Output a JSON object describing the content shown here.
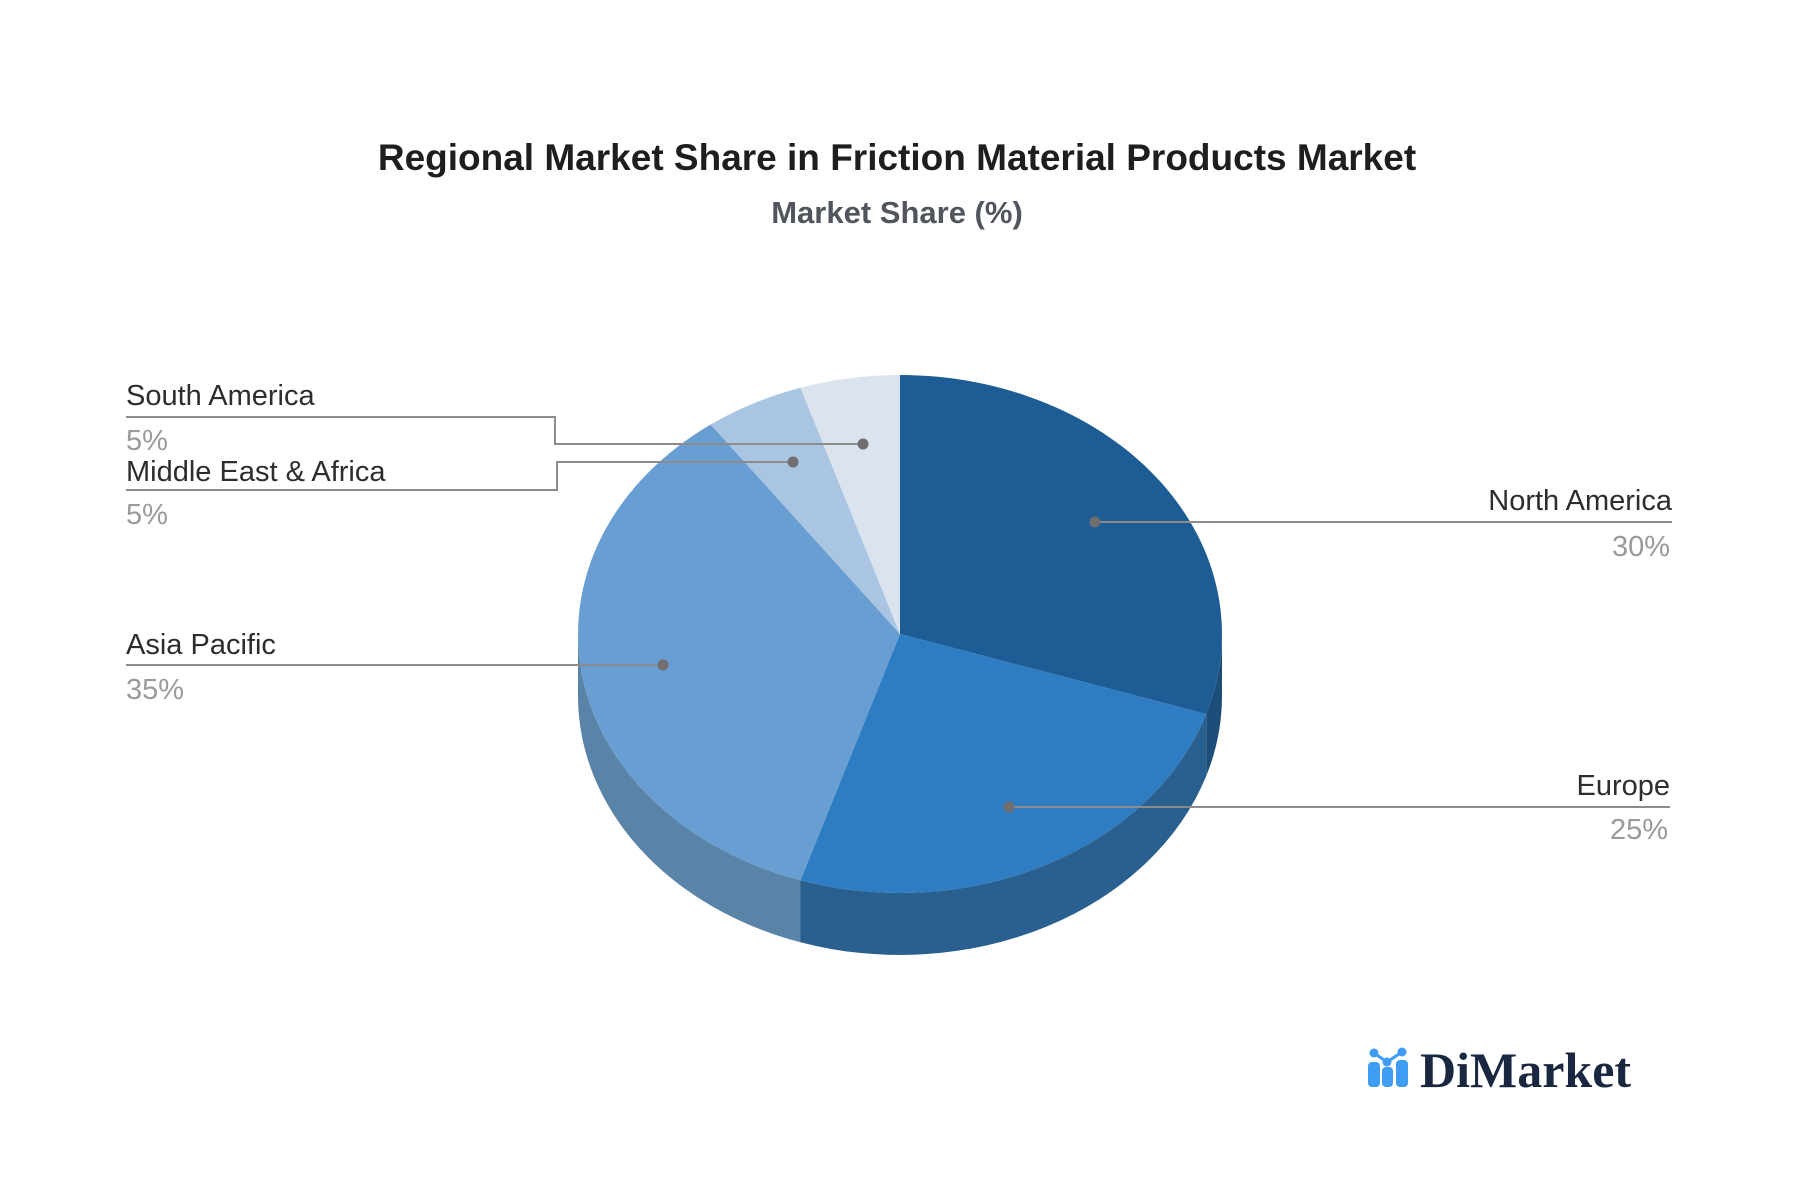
{
  "title": "Regional Market Share in Friction Material Products Market",
  "subtitle": "Market Share (%)",
  "chart_data": {
    "type": "pie",
    "style": "3d",
    "unit": "%",
    "direction": "clockwise",
    "start_angle_deg": 0,
    "categories": [
      "North America",
      "Europe",
      "Asia Pacific",
      "Middle East & Africa",
      "South America"
    ],
    "values": [
      30,
      25,
      35,
      5,
      5
    ],
    "percent_labels": [
      "30%",
      "25%",
      "35%",
      "5%",
      "5%"
    ],
    "slice_colors": [
      "#1e5c95",
      "#2e7cc1",
      "#689ed1",
      "#a9c5e1",
      "#dbe3ee"
    ],
    "rim_colors": [
      "#1c4e79",
      "#2a6090",
      "#5a83a8",
      "#87a5c3",
      "#b8c4d4"
    ],
    "leader_line_color": "#8c8c8c",
    "label_color": "#2d2d2d",
    "percent_color": "#9a9a9a",
    "legend_position": "callouts",
    "background": "#ffffff"
  },
  "logo": {
    "text": "DiMarket",
    "icon": "bar-line-chart-icon",
    "icon_color": "#3f9df3",
    "text_color": "#1a2740"
  }
}
